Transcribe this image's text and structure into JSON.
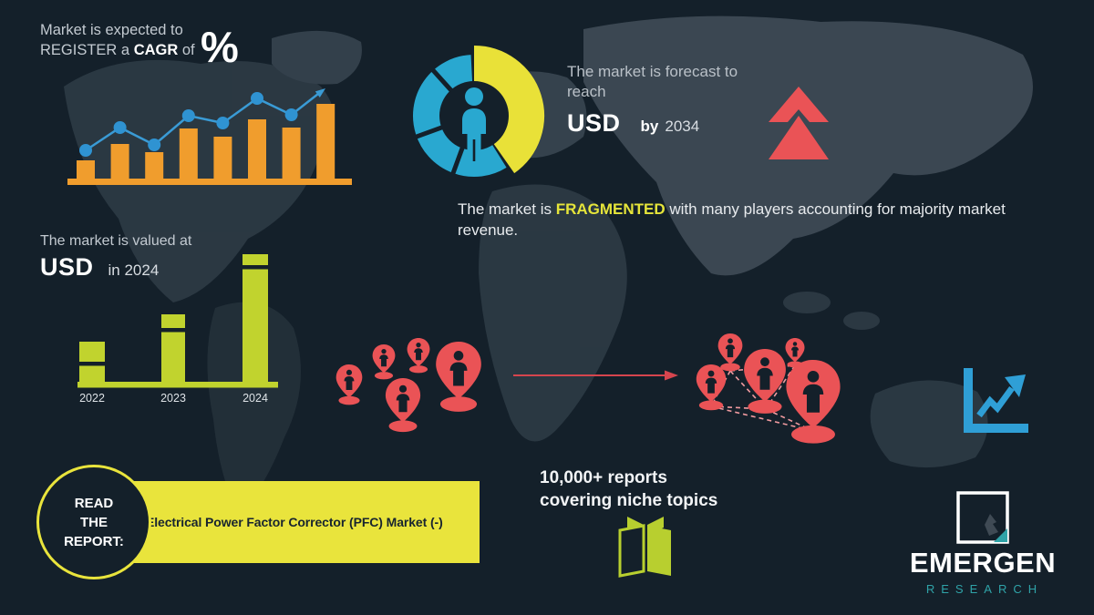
{
  "background": {
    "bg": "#14202a",
    "map_land": "#2c3944",
    "map_land_light": "#3d4954"
  },
  "colors": {
    "yellow": "#e9e43c",
    "teal": "#29a8d0",
    "red": "#ea5356",
    "orange": "#f09d2d",
    "green": "#c1d32e",
    "blue": "#2f9fd6",
    "logo_teal": "#2fa3a8"
  },
  "cagr_section": {
    "line1": "Market is expected to",
    "line2_pre": "REGISTER a ",
    "line2_bold": "CAGR",
    "line2_post": " of",
    "percent_symbol": "%"
  },
  "forecast_section": {
    "line1": "The market is forecast to",
    "line2": "reach",
    "currency": "USD",
    "by_label": "by",
    "year": "2034"
  },
  "fragmented_note": {
    "pre": "The market is ",
    "highlight": "FRAGMENTED",
    "post": " with many players accounting for majority market revenue."
  },
  "valued_section": {
    "line1": "The market is valued at",
    "currency": "USD",
    "suffix": "in 2024"
  },
  "read_report": {
    "circle_lines": [
      "READ",
      "THE",
      "REPORT:"
    ],
    "banner_text": "Electrical Power Factor Corrector (PFC) Market (-)"
  },
  "reports_note": {
    "line1": "10,000+ reports",
    "line2": "covering niche topics"
  },
  "logo": {
    "name": "EMERGEN",
    "subtitle": "RESEARCH"
  },
  "chart_data": [
    {
      "type": "bar",
      "name": "cagr-growth-chart",
      "title": "Market is expected to REGISTER a CAGR of %",
      "description": "Decorative orange bar chart with rising blue dotted trend line ending in an arrow; no axis values shown",
      "values": [
        20,
        38,
        29,
        55,
        46,
        65,
        56,
        82
      ],
      "trend_line_y": [
        125,
        100,
        119,
        87,
        95,
        68,
        86
      ],
      "bar_color": "#f09d2d",
      "line_color": "#3a9bd5",
      "dot_color": "#2f93d2"
    },
    {
      "type": "bar",
      "name": "market-value-chart",
      "title": "The market is valued at USD in 2024",
      "categories": [
        "2022",
        "2023",
        "2024"
      ],
      "values": [
        44,
        74,
        140
      ],
      "cap_offsets": [
        22,
        15,
        12
      ],
      "bar_color": "#c1d32e",
      "label_color": "#dde2e6"
    },
    {
      "type": "pie",
      "name": "market-share-donut",
      "description": "Donut chart with person pictogram in center; yellow leading segment ~40%, teal segmented remainder ~60%",
      "slices": [
        {
          "label": "leading-share",
          "value": 40,
          "color": "#e9e138"
        },
        {
          "label": "remaining-share",
          "value": 60,
          "color": "#29a8d0"
        }
      ]
    }
  ]
}
